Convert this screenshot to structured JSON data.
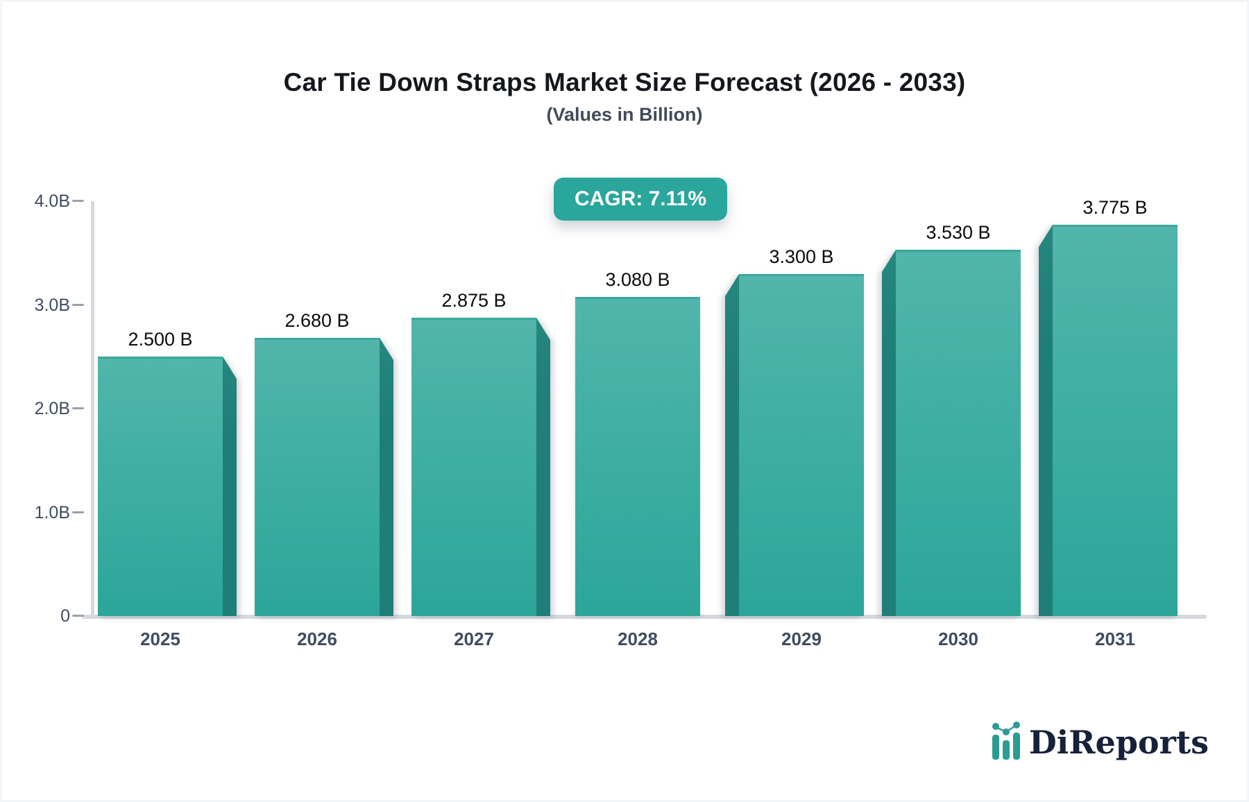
{
  "chart_data": {
    "type": "bar",
    "title": "Car Tie Down Straps Market Size Forecast (2026 - 2033)",
    "subtitle": "(Values in Billion)",
    "cagr_label": "CAGR: 7.11%",
    "categories": [
      "2025",
      "2026",
      "2027",
      "2028",
      "2029",
      "2030",
      "2031"
    ],
    "values": [
      2.5,
      2.68,
      2.875,
      3.08,
      3.3,
      3.53,
      3.775
    ],
    "bar_labels": [
      "2.500 B",
      "2.680 B",
      "2.875 B",
      "3.080 B",
      "3.300 B",
      "3.530 B",
      "3.775 B"
    ],
    "unit": "Billion",
    "ylim": [
      0,
      4.0
    ],
    "yticks": [
      {
        "label": "4.0B",
        "value": 4.0
      },
      {
        "label": "3.0B",
        "value": 3.0
      },
      {
        "label": "2.0B",
        "value": 2.0
      },
      {
        "label": "1.0B",
        "value": 1.0
      },
      {
        "label": "0",
        "value": 0.0
      }
    ],
    "grid": false,
    "legend": false,
    "colors": {
      "bar_top": "#51b5ab",
      "bar_bottom": "#2ba699",
      "bar_side": "#1f7e78",
      "badge_bg": "#2aa69c",
      "axis": "#d6d9dd",
      "axis_label": "#3e4c60",
      "value_label": "#0b0b0b",
      "title": "#14181d",
      "subtitle": "#414b59"
    }
  },
  "branding": {
    "logo_text": "DiReports"
  }
}
